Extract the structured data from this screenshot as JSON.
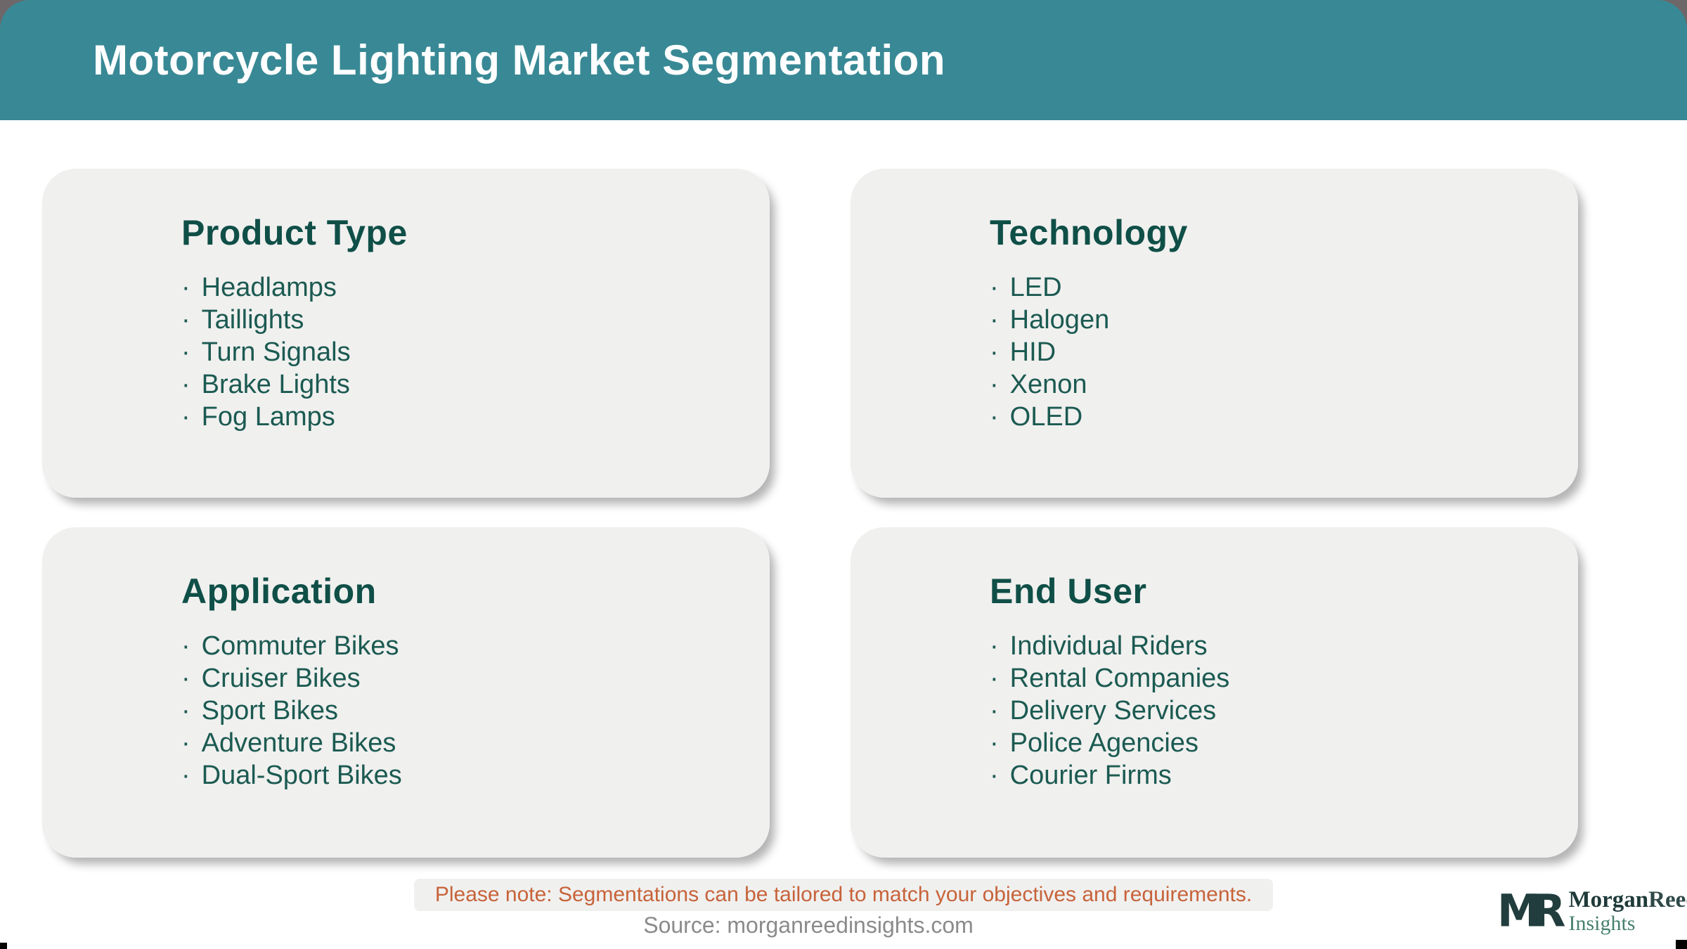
{
  "header": {
    "title": "Motorcycle Lighting Market Segmentation"
  },
  "cards": [
    {
      "title": "Product Type",
      "items": [
        "Headlamps",
        "Taillights",
        "Turn Signals",
        "Brake Lights",
        "Fog Lamps"
      ]
    },
    {
      "title": "Technology",
      "items": [
        "LED",
        "Halogen",
        "HID",
        "Xenon",
        "OLED"
      ]
    },
    {
      "title": "Application",
      "items": [
        "Commuter Bikes",
        "Cruiser Bikes",
        "Sport Bikes",
        "Adventure Bikes",
        "Dual-Sport Bikes"
      ]
    },
    {
      "title": "End User",
      "items": [
        "Individual Riders",
        "Rental Companies",
        "Delivery Services",
        "Police Agencies",
        "Courier Firms"
      ]
    }
  ],
  "note": {
    "text": "Please note: Segmentations can be tailored to match your objectives and requirements."
  },
  "source": {
    "text": "Source: morganreedinsights.com"
  },
  "logo": {
    "monogram": "MR",
    "name_primary": "Morgan",
    "name_secondary": "Reed",
    "tagline": "Insights"
  },
  "ui": {
    "bullet": "·"
  },
  "colors": {
    "header_teal": "#388995",
    "card_background": "#f0f0ef",
    "heading_green": "#0f4f47",
    "item_green": "#1b5a51",
    "note_orange": "#c7633a",
    "source_gray": "#8b8b8b",
    "logo_dark": "#213d3d",
    "logo_teal": "#47806e"
  }
}
